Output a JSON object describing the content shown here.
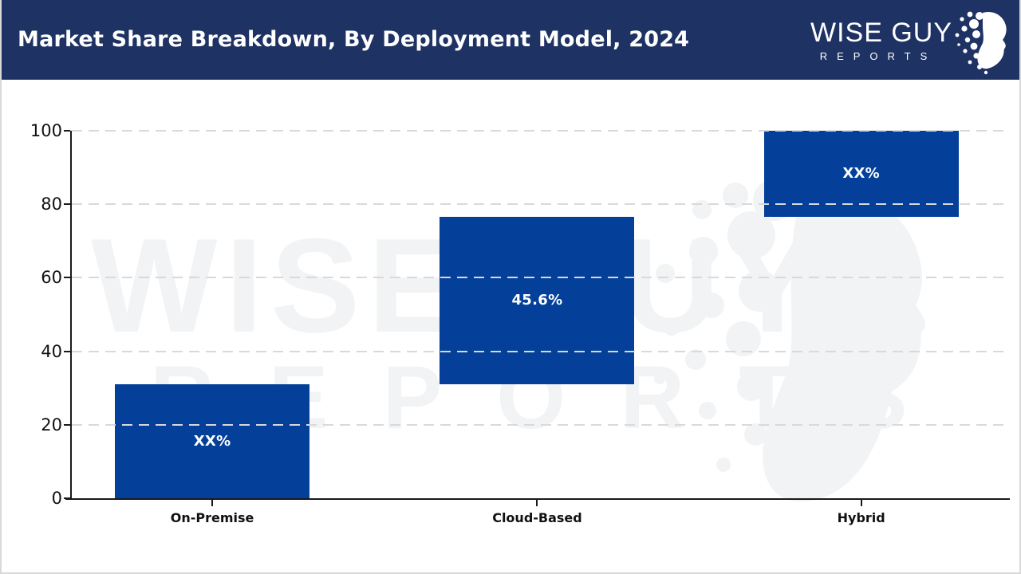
{
  "header": {
    "title": "Market Share Breakdown, By Deployment Model, 2024",
    "bg_color": "#1e3263",
    "logo": {
      "line1": "WISE GUY",
      "line2": "REPORTS"
    }
  },
  "watermark": {
    "line1": "WISE GUY",
    "line2": "REPORTS"
  },
  "chart_data": {
    "type": "bar",
    "variant": "floating-segment",
    "title": "Market Share Breakdown, By Deployment Model, 2024",
    "categories": [
      "On-Premise",
      "Cloud-Based",
      "Hybrid"
    ],
    "segments": [
      {
        "category": "On-Premise",
        "label": "XX%",
        "start": 0,
        "end": 31
      },
      {
        "category": "Cloud-Based",
        "label": "45.6%",
        "start": 31,
        "end": 76.6
      },
      {
        "category": "Hybrid",
        "label": "XX%",
        "start": 76.6,
        "end": 100
      }
    ],
    "yticks": [
      0,
      20,
      40,
      60,
      80,
      100
    ],
    "ylim": [
      0,
      100
    ],
    "xlabel": "",
    "ylabel": "",
    "grid": "horizontal-dashed",
    "legend": "none",
    "bar_color": "#04409a",
    "bar_label_color": "#ffffff",
    "axis_color": "#1a1a1a",
    "gridline_color": "#d9d9d9"
  }
}
